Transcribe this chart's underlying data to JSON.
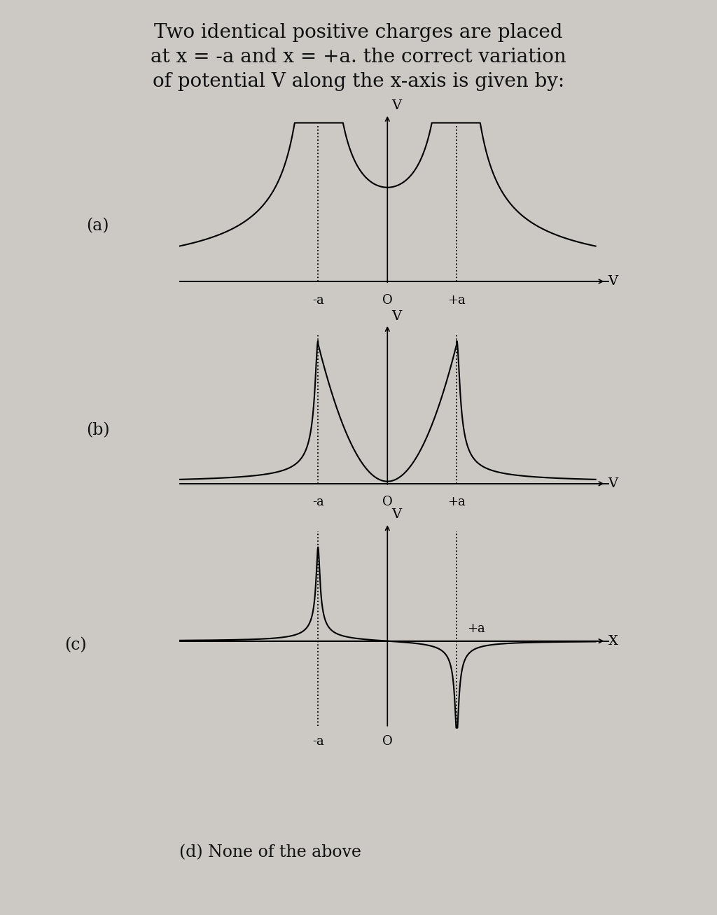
{
  "title_line1": "Two identical positive charges are placed",
  "title_line2": "at x = -a and x = +a. the correct variation",
  "title_line3": "of potential V along the x-axis is given by:",
  "background_color": "#ccc9c4",
  "text_color": "#111111",
  "label_a": "(a)",
  "label_b": "(b)",
  "label_c": "(c)",
  "label_d": "(d) None of the above",
  "axis_label_V": "V",
  "axis_label_X": "X",
  "tick_neg_a": "-a",
  "tick_pos_a": "+a",
  "tick_O": "O",
  "title_fontsize": 20,
  "label_fontsize": 17,
  "tick_fontsize": 13,
  "axis_fontsize": 14
}
